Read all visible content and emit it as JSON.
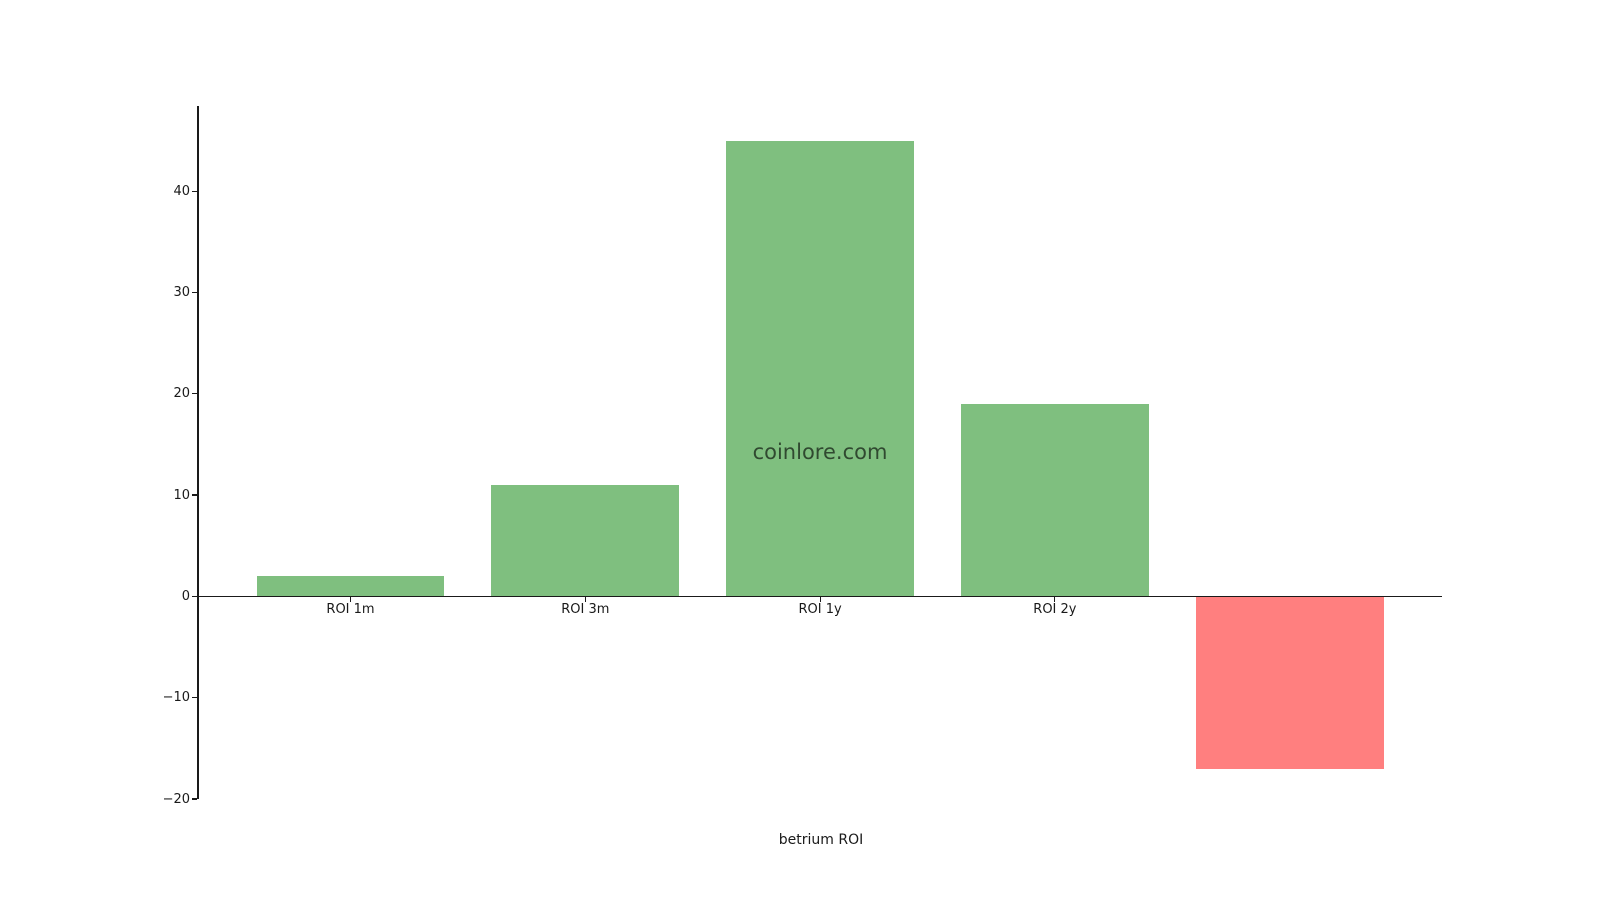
{
  "figure": {
    "background": "#ffffff"
  },
  "chart_data": {
    "type": "bar",
    "title": "",
    "categories": [
      "ROI 1m",
      "ROI 3m",
      "ROI 1y",
      "ROI 2y",
      ""
    ],
    "values": [
      2,
      11,
      45,
      19,
      -17
    ],
    "positive_color": "#7fbf7f",
    "negative_color": "#ff7f7f",
    "axis_color": "#1a1a1a",
    "xlabel": "betrium ROI",
    "ylabel": "",
    "ylim": [
      -20,
      48.4
    ],
    "yticks": [
      40,
      30,
      20,
      10,
      0,
      -10,
      -20
    ],
    "ytick_labels": [
      "40",
      "30",
      "20",
      "10",
      "0",
      "−10",
      "−20"
    ],
    "grid": false,
    "legend": null,
    "watermark": "coinlore.com",
    "watermark_color": "rgba(0, 0, 0, 0.62)"
  }
}
